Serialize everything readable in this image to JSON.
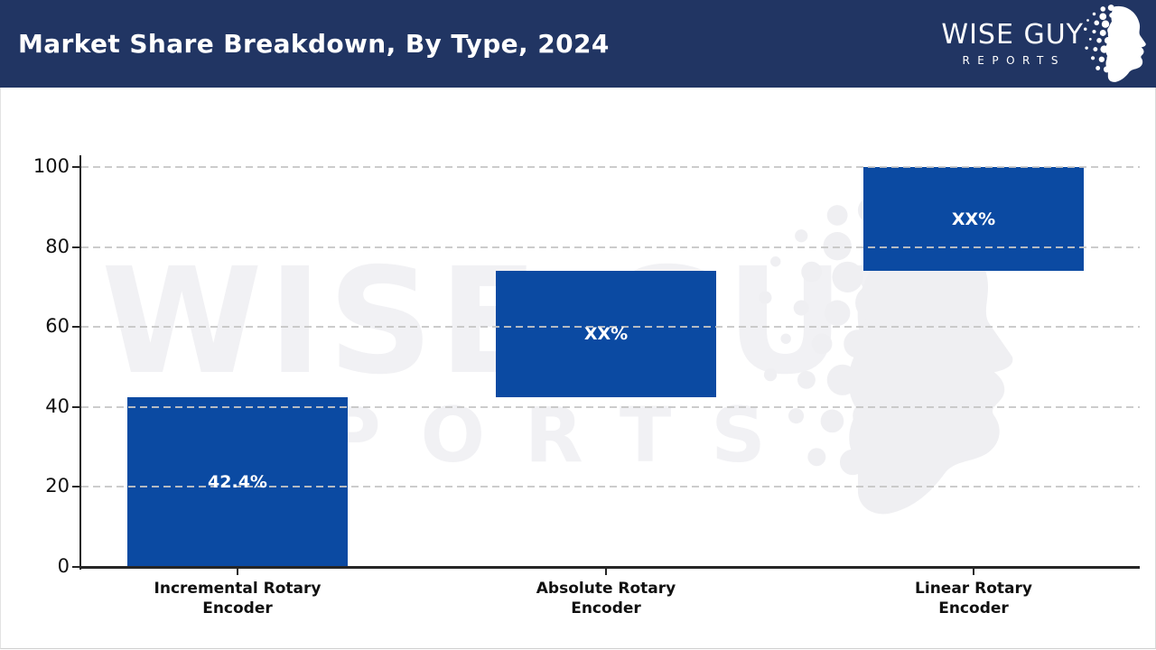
{
  "header": {
    "title": "Market Share Breakdown, By Type, 2024",
    "bg_color": "#213563",
    "logo": {
      "name": "WISE GUY",
      "tagline": "REPORTS"
    }
  },
  "watermark": {
    "line1": "WISE GUY",
    "line2": "REPORTS"
  },
  "chart_data": {
    "type": "bar",
    "subtype": "stacked-waterfall",
    "title": "Market Share Breakdown, By Type, 2024",
    "categories": [
      {
        "line1": "Incremental Rotary",
        "line2": "Encoder"
      },
      {
        "line1": "Absolute Rotary",
        "line2": "Encoder"
      },
      {
        "line1": "Linear Rotary",
        "line2": "Encoder"
      }
    ],
    "segments": [
      {
        "start": 0,
        "end": 42.4,
        "label": "42.4%"
      },
      {
        "start": 42.4,
        "end": 74,
        "label": "XX%"
      },
      {
        "start": 74,
        "end": 100,
        "label": "XX%"
      }
    ],
    "ylim": [
      0,
      100
    ],
    "yticks": [
      0,
      20,
      40,
      60,
      80,
      100
    ],
    "xlabel": "",
    "ylabel": "",
    "grid": true,
    "legend": false,
    "colors": {
      "bar": "#0B4AA2",
      "bar_label": "#ffffff",
      "axis": "#262626",
      "gridline": "#c6c6c6",
      "tick_label": "#111111"
    }
  }
}
